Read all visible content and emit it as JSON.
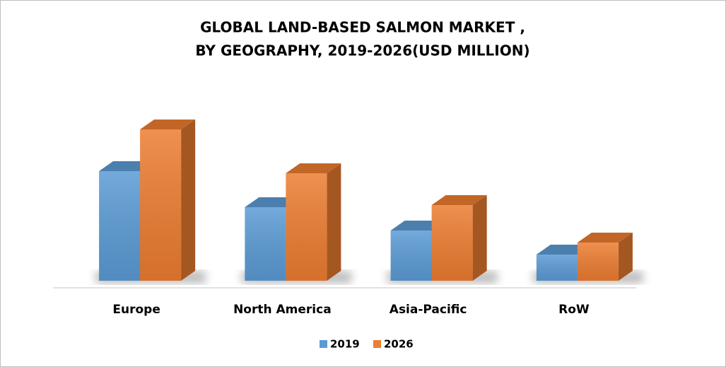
{
  "chart_data": {
    "type": "bar3d",
    "title": [
      "GLOBAL LAND-BASED SALMON MARKET ,",
      "BY GEOGRAPHY, 2019-2026(USD MILLION)"
    ],
    "categories": [
      "Europe",
      "North America",
      "Asia-Pacific",
      "RoW"
    ],
    "series": [
      {
        "name": "2019",
        "color": "#5b9bd5",
        "values": [
          155,
          104,
          71,
          37
        ]
      },
      {
        "name": "2026",
        "color": "#ed7d31",
        "values": [
          214,
          152,
          107,
          54
        ]
      }
    ],
    "ylim": [
      0,
      250
    ],
    "legend": "bottom"
  }
}
